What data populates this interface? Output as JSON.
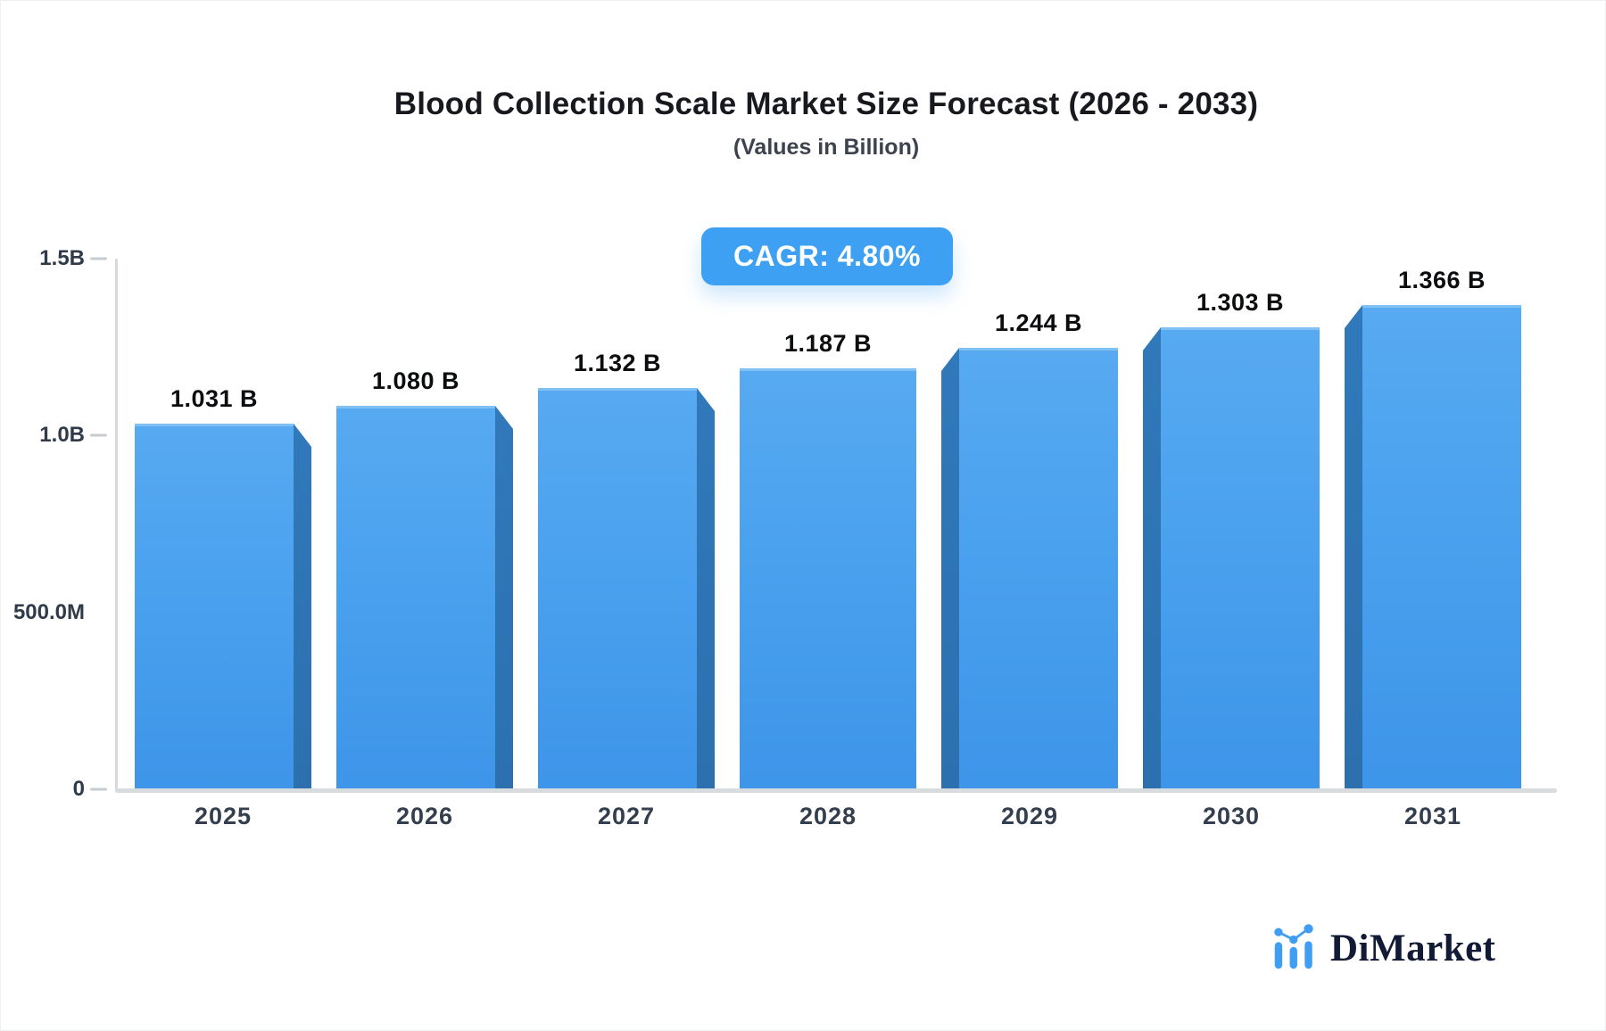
{
  "header": {
    "title": "Blood Collection Scale Market Size Forecast (2026 - 2033)",
    "subtitle": "(Values in Billion)",
    "badge": "CAGR: 4.80%"
  },
  "chart_data": {
    "type": "bar",
    "title": "Blood Collection Scale Market Size Forecast (2026 - 2033)",
    "subtitle": "(Values in Billion)",
    "cagr_percent": 4.8,
    "categories": [
      "2025",
      "2026",
      "2027",
      "2028",
      "2029",
      "2030",
      "2031"
    ],
    "values_billion": [
      1.031,
      1.08,
      1.132,
      1.187,
      1.244,
      1.303,
      1.366
    ],
    "value_labels": [
      "1.031 B",
      "1.080 B",
      "1.132 B",
      "1.187 B",
      "1.244 B",
      "1.303 B",
      "1.366 B"
    ],
    "bar_3d_side": [
      "right",
      "right",
      "right",
      "none",
      "left",
      "left",
      "left"
    ],
    "xlabel": "",
    "ylabel": "",
    "ylim_billion": [
      0,
      1.5
    ],
    "y_ticks": [
      {
        "label": "1.5B",
        "value": 1.5,
        "dash": true
      },
      {
        "label": "1.0B",
        "value": 1.0,
        "dash": true
      },
      {
        "label": "500.0M",
        "value": 0.5,
        "dash": false
      },
      {
        "label": "0",
        "value": 0.0,
        "dash": true
      }
    ],
    "grid": false,
    "legend": false
  },
  "footer": {
    "logo_text": "DiMarket"
  },
  "colors": {
    "accent_badge": "#3da0f2",
    "bar_face": "#4aa1ee",
    "bar_side": "#2d73b2",
    "axis_line": "#d6dade",
    "title_text": "#17191e",
    "subtitle_text": "#3d434e",
    "tick_text": "#303b4a",
    "value_label_text": "#0c0d0f",
    "logo_text": "#111b35",
    "logo_icon_blue": "#3f9ef3"
  }
}
